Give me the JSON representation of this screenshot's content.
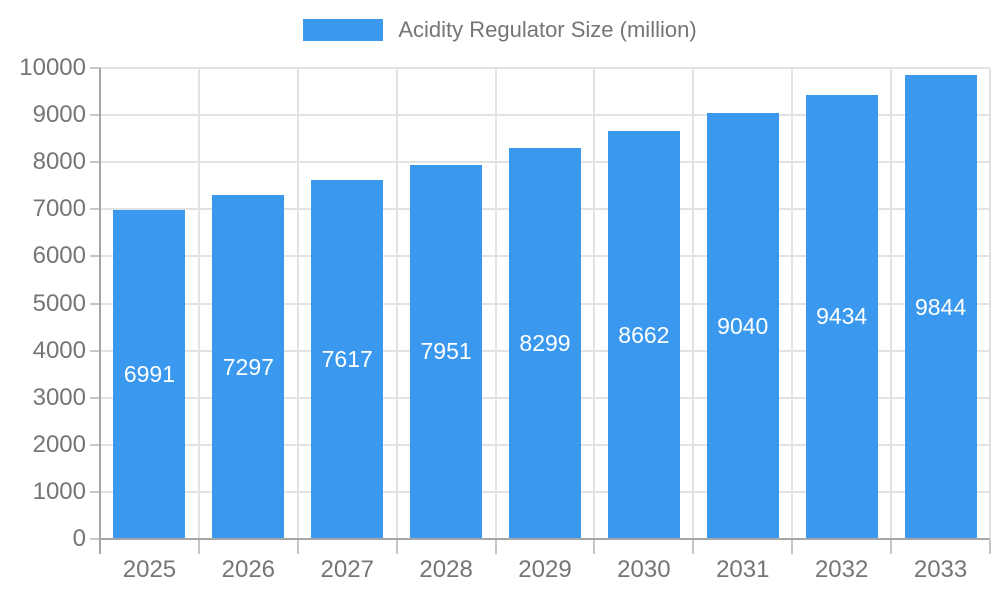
{
  "chart_data": {
    "type": "bar",
    "title": "",
    "legend": "Acidity Regulator Size (million)",
    "legend_position": "top-center",
    "categories": [
      "2025",
      "2026",
      "2027",
      "2028",
      "2029",
      "2030",
      "2031",
      "2032",
      "2033"
    ],
    "values": [
      6991,
      7297,
      7617,
      7951,
      8299,
      8662,
      9040,
      9434,
      9844
    ],
    "xlabel": "",
    "ylabel": "",
    "ylim": [
      0,
      10000
    ],
    "ytick_interval": 1000,
    "grid": true,
    "value_labels_position": "inside-center"
  },
  "colors": {
    "background": "#ffffff",
    "bar": "#3A99EF",
    "bar_label": "#ffffff",
    "axis": "#A6A6A6",
    "grid": "#E3E3E3",
    "tick": "#C6C6C6",
    "text": "#757575"
  }
}
